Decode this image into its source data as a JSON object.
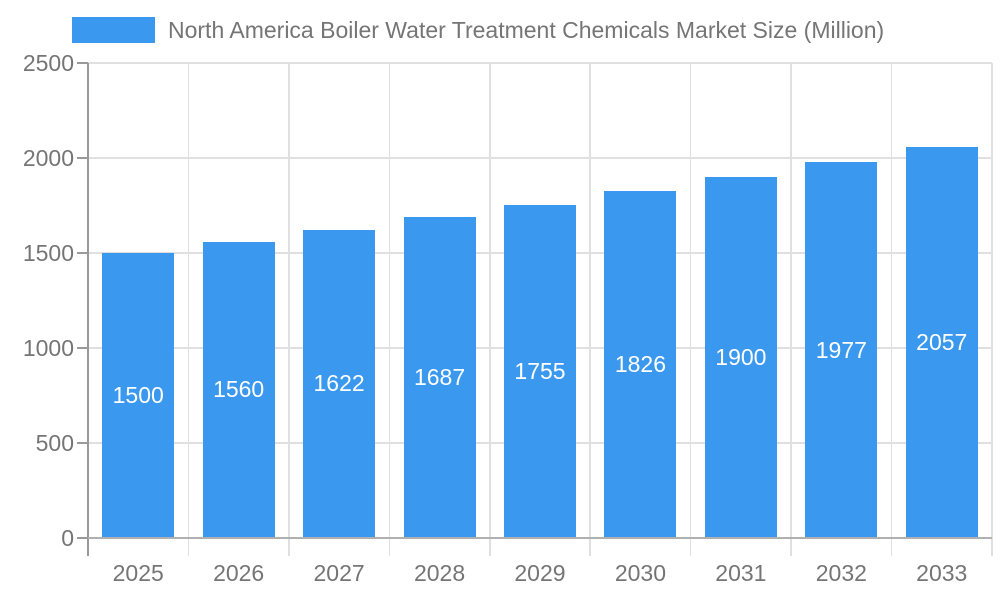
{
  "chart_data": {
    "type": "bar",
    "title": "North America Boiler Water Treatment Chemicals Market Size (Million)",
    "categories": [
      "2025",
      "2026",
      "2027",
      "2028",
      "2029",
      "2030",
      "2031",
      "2032",
      "2033"
    ],
    "values": [
      1500,
      1560,
      1622,
      1687,
      1755,
      1826,
      1900,
      1977,
      2057
    ],
    "series": [
      {
        "name": "North America Boiler Water Treatment Chemicals Market Size (Million)",
        "values": [
          1500,
          1560,
          1622,
          1687,
          1755,
          1826,
          1900,
          1977,
          2057
        ]
      }
    ],
    "xlabel": "",
    "ylabel": "",
    "ylim": [
      0,
      2500
    ],
    "yticks": [
      0,
      500,
      1000,
      1500,
      2000,
      2500
    ],
    "grid": true,
    "legend_position": "top-left",
    "value_labels_position": "inside-center"
  },
  "legend": {
    "label": "North America Boiler Water Treatment Chemicals Market Size (Million)"
  },
  "colors": {
    "bar": "#3a99ee",
    "grid": "#e0e0e0",
    "axis": "#999999",
    "baseline": "#b0b0b0",
    "tick_text": "#757575",
    "value_label": "#ffffff",
    "background": "#ffffff"
  }
}
